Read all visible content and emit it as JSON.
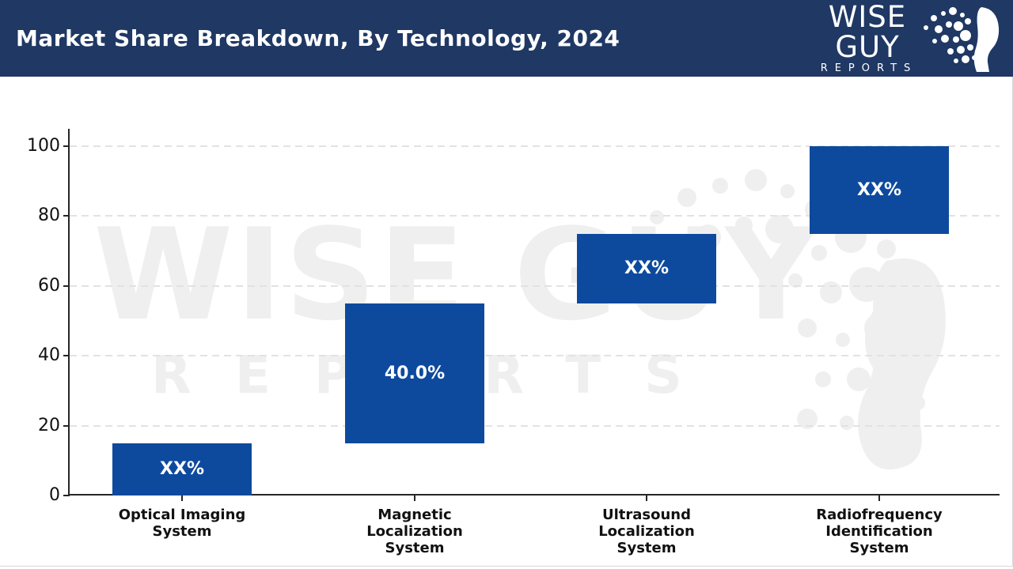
{
  "header": {
    "title": "Market Share Breakdown, By Technology, 2024",
    "logo": {
      "name": "WISE GUY",
      "sub": "REPORTS"
    }
  },
  "watermark": {
    "name": "WISE GUY",
    "sub": "REPORTS"
  },
  "colors": {
    "header_bg": "#1f3864",
    "bar": "#0d4a9e",
    "bar_label": "#ffffff",
    "axis": "#262626",
    "grid": "#e2e2e2",
    "watermark": "#efefef"
  },
  "chart_data": {
    "type": "bar",
    "subtype": "floating-waterfall",
    "title": "Market Share Breakdown, By Technology, 2024",
    "categories": [
      "Optical Imaging\nSystem",
      "Magnetic\nLocalization\nSystem",
      "Ultrasound\nLocalization\nSystem",
      "Radiofrequency\nIdentification\nSystem"
    ],
    "bars": [
      {
        "category": "Optical Imaging System",
        "start": 0,
        "end": 15,
        "value_label": "XX%"
      },
      {
        "category": "Magnetic Localization System",
        "start": 15,
        "end": 55,
        "value_label": "40.0%"
      },
      {
        "category": "Ultrasound Localization System",
        "start": 55,
        "end": 75,
        "value_label": "XX%"
      },
      {
        "category": "Radiofrequency Identification System",
        "start": 75,
        "end": 100,
        "value_label": "XX%"
      }
    ],
    "xlabel": "",
    "ylabel": "",
    "ylim": [
      0,
      100
    ],
    "yticks": [
      0,
      20,
      40,
      60,
      80,
      100
    ],
    "grid": true,
    "legend": false
  }
}
